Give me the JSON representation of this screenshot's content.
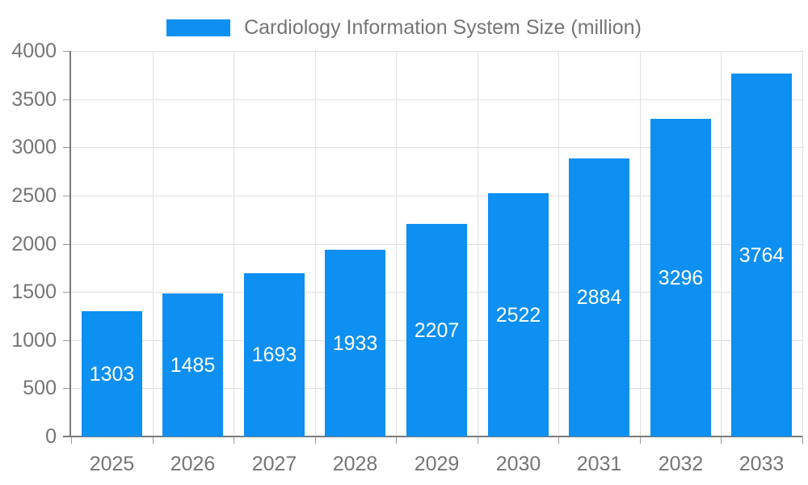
{
  "chart_data": {
    "type": "bar",
    "title": "Cardiology Information System Size (million)",
    "legend": {
      "label": "Cardiology Information System Size (million)",
      "position": "top-center"
    },
    "categories": [
      "2025",
      "2026",
      "2027",
      "2028",
      "2029",
      "2030",
      "2031",
      "2032",
      "2033"
    ],
    "series": [
      {
        "name": "Cardiology Information System Size (million)",
        "values": [
          1303,
          1485,
          1693,
          1933,
          2207,
          2522,
          2884,
          3296,
          3764
        ]
      }
    ],
    "value_labels": [
      "1303",
      "1485",
      "1693",
      "1933",
      "2207",
      "2522",
      "2884",
      "3296",
      "3764"
    ],
    "xlabel": "",
    "ylabel": "",
    "ylim": [
      0,
      4000
    ],
    "ytick_step": 500,
    "ytick_labels": [
      "0",
      "500",
      "1000",
      "1500",
      "2000",
      "2500",
      "3000",
      "3500",
      "4000"
    ],
    "grid": "both",
    "colors": {
      "bar": "#0d90f2",
      "value_label": "#ffffff",
      "axis_text": "#757575",
      "grid_line": "#e0e0e0",
      "axis_line": "#7a7a7a",
      "tick": "#9a9a9a",
      "background": "#ffffff"
    }
  }
}
